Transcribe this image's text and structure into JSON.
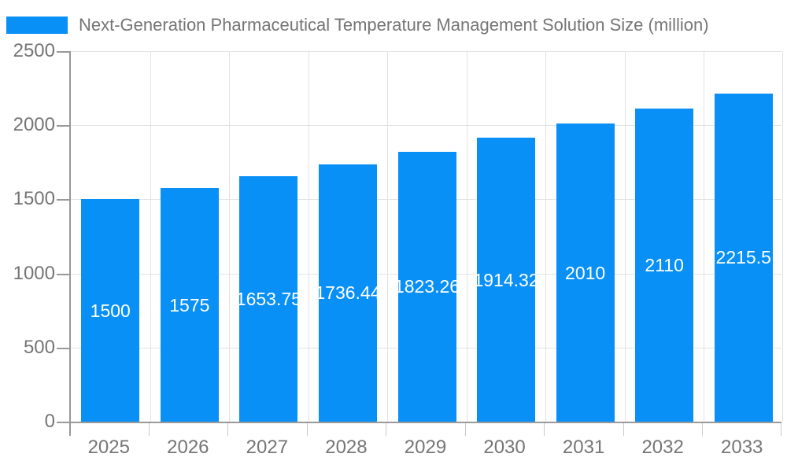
{
  "chart_data": {
    "type": "bar",
    "title": "Next-Generation Pharmaceutical Temperature Management Solution Size (million)",
    "categories": [
      "2025",
      "2026",
      "2027",
      "2028",
      "2029",
      "2030",
      "2031",
      "2032",
      "2033"
    ],
    "values": [
      1500,
      1575,
      1653.75,
      1736.44,
      1823.26,
      1914.32,
      2010,
      2110,
      2215.5
    ],
    "value_labels": [
      "1500",
      "1575",
      "1653.75",
      "1736.44",
      "1823.26",
      "1914.32",
      "2010",
      "2110",
      "2215.5"
    ],
    "ylim": [
      0,
      2500
    ],
    "ytick_labels": [
      "2500",
      "2000",
      "1500",
      "1000",
      "500",
      "0"
    ],
    "ytick_step": 500,
    "grid": true,
    "legend_position": "top-left",
    "bar_label_position": "inside-center",
    "colors": {
      "bar": "#0990F7",
      "axis": "#999999",
      "gridline": "#E2E2E2",
      "xtick": "#C9C9C9",
      "text": "#757575",
      "bar_label": "#FFFFFF"
    }
  }
}
